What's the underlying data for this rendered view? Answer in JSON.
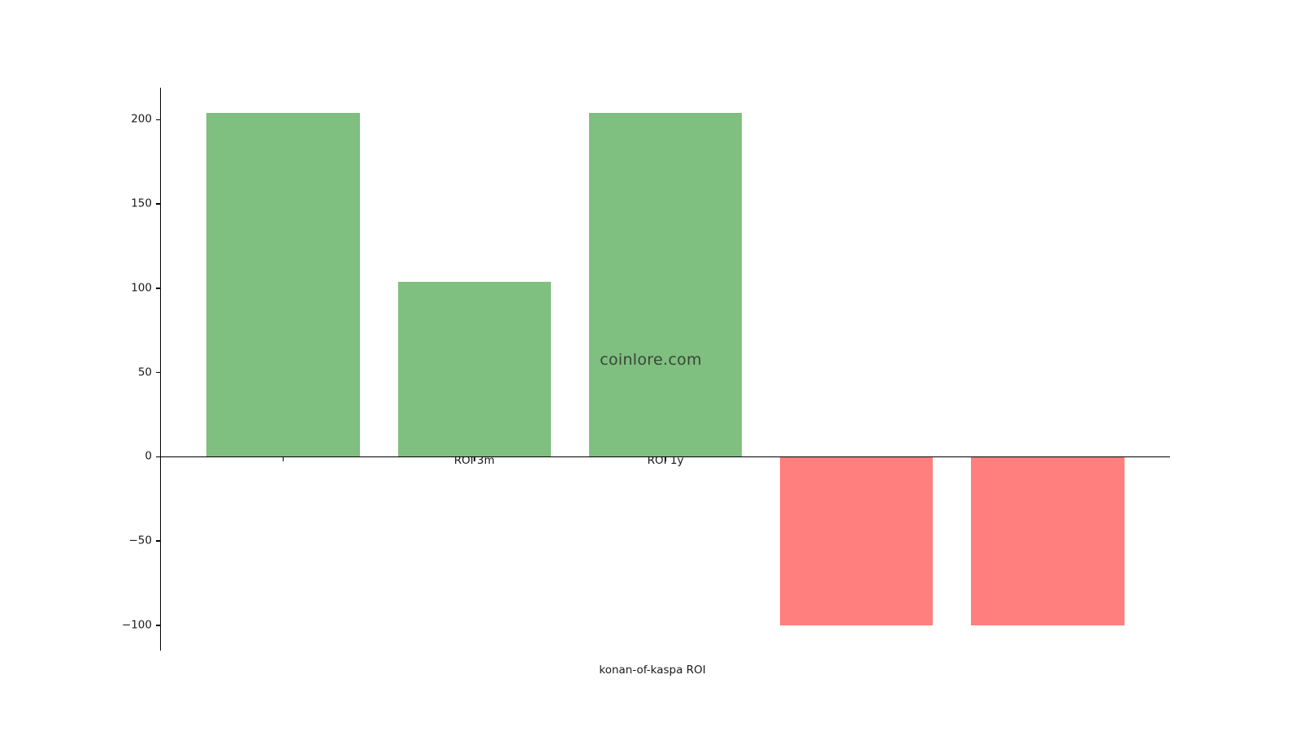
{
  "chart_data": {
    "type": "bar",
    "title": "konan-of-kaspa ROI",
    "watermark": "coinlore.com",
    "categories": [
      "",
      "ROI 3m",
      "ROI 1y",
      "",
      ""
    ],
    "values": [
      204,
      104,
      204,
      -100,
      -100
    ],
    "yticks": [
      200,
      150,
      100,
      50,
      0,
      -50,
      -100
    ],
    "ylim": [
      -115,
      219
    ],
    "xlim": [
      -0.64,
      4.64
    ],
    "bar_width": 0.8,
    "xlabel": "konan-of-kaspa ROI",
    "ylabel": "",
    "grid": false,
    "legend": false,
    "positive_color": "#7fbf7f",
    "negative_color": "#ff7f7f",
    "axis_color": "#000000",
    "text_color": "#1a1a1a",
    "watermark_color": "rgba(42,48,42,0.85)",
    "background_color": "#ffffff"
  }
}
